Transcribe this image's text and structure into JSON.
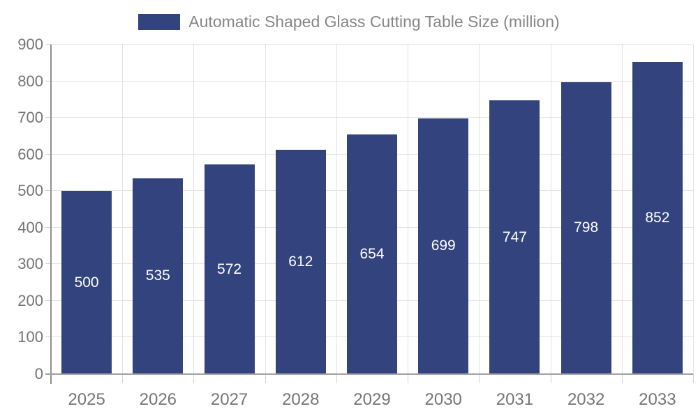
{
  "chart_data": {
    "type": "bar",
    "title": "Automatic Shaped Glass Cutting Table Size (million)",
    "legend": {
      "label": "Automatic Shaped Glass Cutting Table Size (million)",
      "position": "top-center"
    },
    "categories": [
      "2025",
      "2026",
      "2027",
      "2028",
      "2029",
      "2030",
      "2031",
      "2032",
      "2033"
    ],
    "values": [
      500,
      535,
      572,
      612,
      654,
      699,
      747,
      798,
      852
    ],
    "xlabel": "",
    "ylabel": "",
    "ylim": [
      0,
      900
    ],
    "yticks": [
      0,
      100,
      200,
      300,
      400,
      500,
      600,
      700,
      800,
      900
    ],
    "grid": "on",
    "value_labels": "centered-inside-bars",
    "colors": {
      "bar": "#33437e",
      "bar_label_text": "#ffffff",
      "grid_line": "#e2e2e2",
      "axis_line": "#a0a0a0",
      "tick_text": "#757575",
      "legend_text": "#868686"
    }
  }
}
